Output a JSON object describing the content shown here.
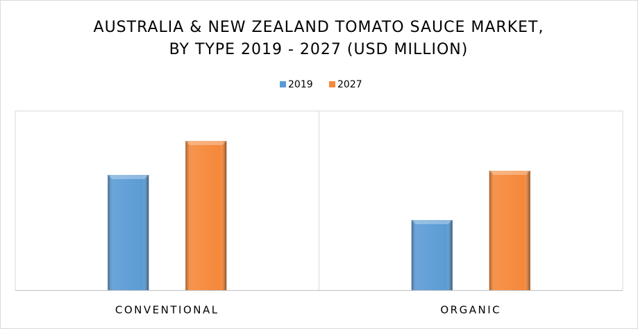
{
  "chart_data": {
    "type": "bar",
    "title": [
      "AUSTRALIA & NEW ZEALAND TOMATO SAUCE MARKET,",
      "BY TYPE 2019 - 2027 (USD MILLION)"
    ],
    "categories": [
      "CONVENTIONAL",
      "ORGANIC"
    ],
    "series": [
      {
        "name": "2019",
        "color": "#5b9bd5",
        "values": [
          166,
          101
        ]
      },
      {
        "name": "2027",
        "color": "#f5883a",
        "values": [
          215,
          172
        ]
      }
    ],
    "ylim": [
      0,
      258
    ],
    "legend": "top"
  }
}
